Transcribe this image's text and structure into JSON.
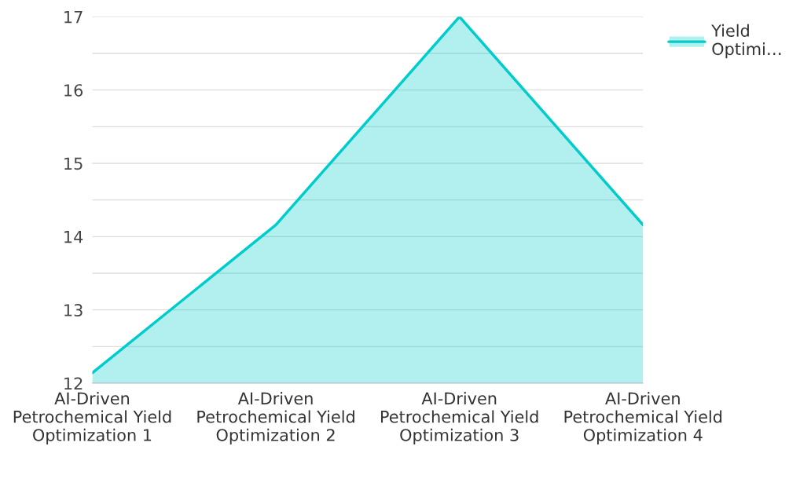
{
  "chart_data": {
    "type": "area",
    "categories": [
      "AI-Driven Petrochemical Yield Optimization 1",
      "AI-Driven Petrochemical Yield Optimization 2",
      "AI-Driven Petrochemical Yield Optimization 3",
      "AI-Driven Petrochemical Yield Optimization 4"
    ],
    "series": [
      {
        "name": "Yield Optimi…",
        "color": "#00cccc",
        "values": [
          12.14,
          14.16,
          17.0,
          14.16
        ]
      }
    ],
    "ylim": [
      12,
      17
    ],
    "yticks": [
      12,
      {
        "value": 12.5,
        "label": null
      },
      13,
      {
        "value": 13.5,
        "label": null
      },
      14,
      {
        "value": 14.5,
        "label": null
      },
      15,
      {
        "value": 15.5,
        "label": null
      },
      16,
      {
        "value": 16.5,
        "label": null
      },
      17
    ],
    "grid": "y",
    "legend": "top right",
    "marker": "none",
    "line_style": "solid"
  }
}
